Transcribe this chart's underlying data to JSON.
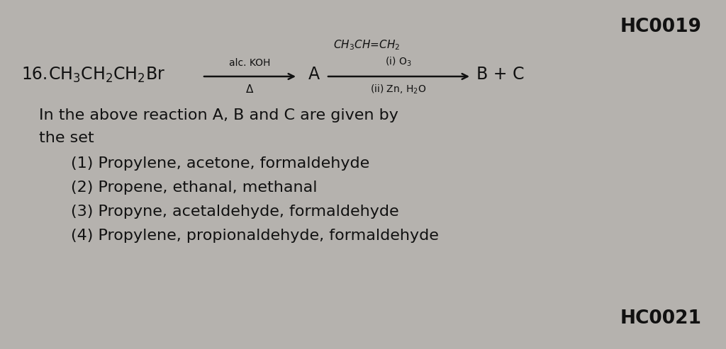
{
  "background_color": "#b5b2ae",
  "header_code": "HC0019",
  "footer_code": "HC0021",
  "question_number": "16.",
  "arrow1_top": "alc. KOH",
  "arrow1_bottom": "Δ",
  "above_A": "CH₃CH=CH₂",
  "arrow2_top": "(i) O₃",
  "arrow2_bottom": "(ii) Zn, H₂O",
  "products": "B + C",
  "line1": "In the above reaction A, B and C are given by",
  "line2": "the set",
  "option1": "(1) Propylene, acetone, formaldehyde",
  "option2": "(2) Propene, ethanal, methanal",
  "option3": "(3) Propyne, acetaldehyde, formaldehyde",
  "option4": "(4) Propylene, propionaldehyde, formaldehyde",
  "text_color": "#111111",
  "header_color": "#111111",
  "fig_width": 10.24,
  "fig_height": 4.93,
  "dpi": 100
}
